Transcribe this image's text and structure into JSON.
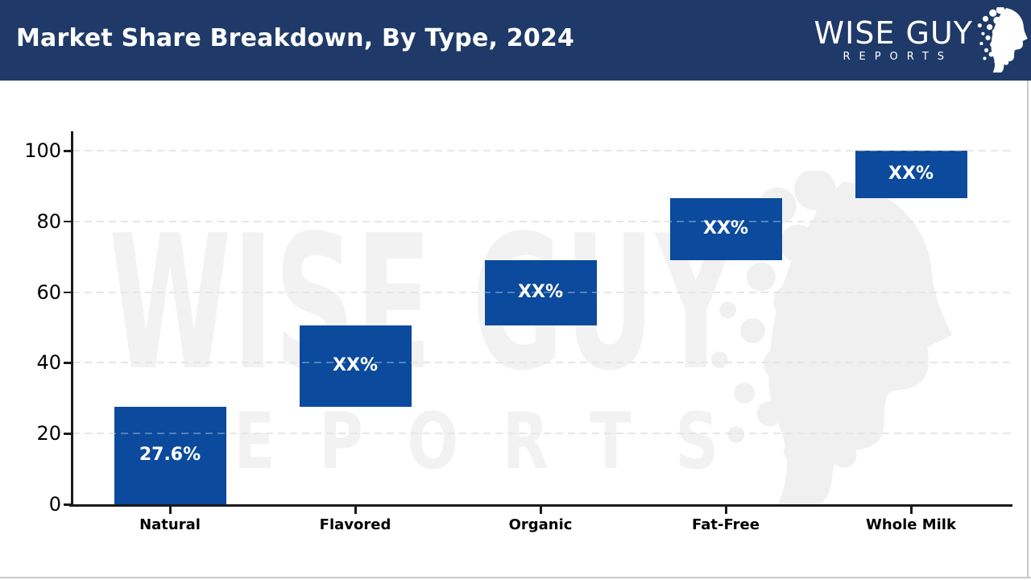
{
  "header": {
    "title": "Market Share Breakdown, By Type, 2024",
    "logo": {
      "primary": "WISE GUY",
      "secondary": "REPORTS"
    }
  },
  "watermark": {
    "primary": "WISE GUY",
    "secondary": "REPORTS"
  },
  "chart_data": {
    "type": "bar",
    "subtype": "waterfall",
    "title": "Market Share Breakdown, By Type, 2024",
    "categories": [
      "Natural",
      "Flavored",
      "Organic",
      "Fat-Free",
      "Whole Milk"
    ],
    "segments": [
      {
        "category": "Natural",
        "start": 0,
        "end": 27.6,
        "label": "27.6%"
      },
      {
        "category": "Flavored",
        "start": 27.6,
        "end": 50.6,
        "label": "XX%"
      },
      {
        "category": "Organic",
        "start": 50.6,
        "end": 69.1,
        "label": "XX%"
      },
      {
        "category": "Fat-Free",
        "start": 69.1,
        "end": 86.6,
        "label": "XX%"
      },
      {
        "category": "Whole Milk",
        "start": 86.6,
        "end": 100,
        "label": "XX%"
      }
    ],
    "xlabel": "",
    "ylabel": "",
    "y_ticks": [
      0,
      20,
      40,
      60,
      80,
      100
    ],
    "ylim": [
      0,
      100
    ],
    "grid": "horizontal-dashed",
    "legend": "none",
    "colors": {
      "bar": "#0B4A9C",
      "header_bg": "#1F3A68",
      "grid": "#DCDCDC",
      "axis": "#1A1A1A",
      "bar_label": "#FFFFFF",
      "watermark": "#F2F2F2",
      "frame_line": "#C9C9C9"
    }
  }
}
